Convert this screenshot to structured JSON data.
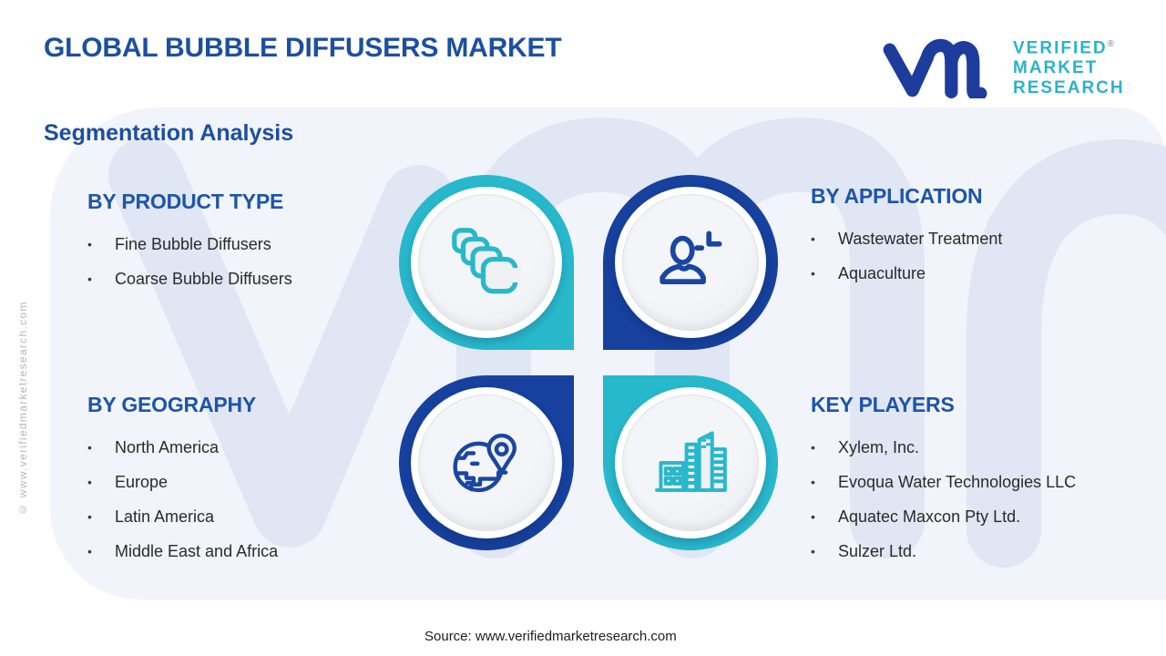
{
  "header": {
    "title": "GLOBAL BUBBLE DIFFUSERS MARKET",
    "subtitle": "Segmentation Analysis"
  },
  "logo": {
    "monogram": "vm",
    "line1": "VERIFIED",
    "line2": "MARKET",
    "line3": "RESEARCH",
    "registered": "®",
    "mark_color": "#1e3c9b",
    "text_color": "#2cb3c7"
  },
  "watermark_text": "vmr",
  "side_note": "© www.verifiedmarketresearch.com",
  "footer": {
    "source": "Source: www.verifiedmarketresearch.com"
  },
  "colors": {
    "teal_accent": "#28b8cc",
    "blue_accent": "#16419e",
    "heading_blue": "#1d55a8",
    "title_blue": "#1c4fa0",
    "body_text": "#2a2a2a",
    "panel_bg": "#f1f4fa",
    "watermark": "#e0e6f3"
  },
  "chart_data": {
    "type": "table",
    "title": "Global Bubble Diffusers Market - Segmentation Analysis",
    "categories": [
      "BY PRODUCT TYPE",
      "BY APPLICATION",
      "BY GEOGRAPHY",
      "KEY PLAYERS"
    ],
    "series": [
      {
        "name": "BY PRODUCT TYPE",
        "values": [
          "Fine Bubble Diffusers",
          "Coarse Bubble Diffusers"
        ]
      },
      {
        "name": "BY APPLICATION",
        "values": [
          "Wastewater Treatment",
          "Aquaculture"
        ]
      },
      {
        "name": "BY GEOGRAPHY",
        "values": [
          "North America",
          "Europe",
          "Latin America",
          "Middle East and Africa"
        ]
      },
      {
        "name": "KEY PLAYERS",
        "values": [
          "Xylem, Inc.",
          "Evoqua Water Technologies LLC",
          "Aquatec Maxcon Pty Ltd.",
          "Sulzer Ltd."
        ]
      }
    ]
  },
  "sections": [
    {
      "id": "product-type",
      "heading": "BY PRODUCT TYPE",
      "items": [
        "Fine Bubble Diffusers",
        "Coarse Bubble Diffusers"
      ],
      "icon": "bubble-squares-icon",
      "accent": "#28b8cc"
    },
    {
      "id": "application",
      "heading": "BY APPLICATION",
      "items": [
        "Wastewater Treatment",
        "Aquaculture"
      ],
      "icon": "person-icon",
      "accent": "#16419e"
    },
    {
      "id": "geography",
      "heading": "BY GEOGRAPHY",
      "items": [
        "North America",
        "Europe",
        "Latin America",
        "Middle East and Africa"
      ],
      "icon": "globe-pin-icon",
      "accent": "#16419e"
    },
    {
      "id": "key-players",
      "heading": "KEY PLAYERS",
      "items": [
        "Xylem, Inc.",
        "Evoqua Water Technologies LLC",
        "Aquatec Maxcon Pty Ltd.",
        "Sulzer Ltd."
      ],
      "icon": "buildings-icon",
      "accent": "#28b8cc"
    }
  ]
}
